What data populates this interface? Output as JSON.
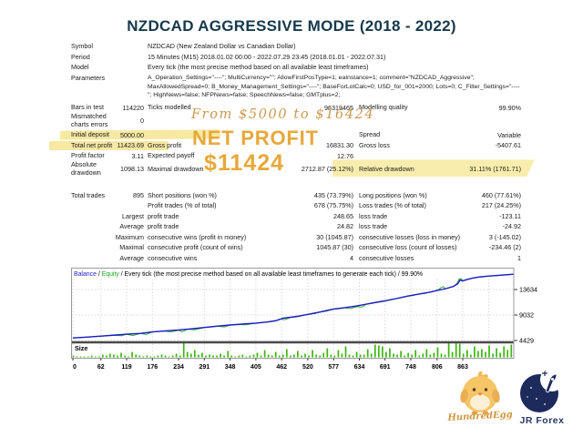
{
  "title": "NZDCAD AGGRESSIVE MODE (2018 - 2022)",
  "overlay": {
    "range_text": "From $5000 to $16424",
    "net_profit_label": "NET PROFIT",
    "net_profit_value": "$11424"
  },
  "info_rows": [
    {
      "label": "Symbol",
      "value": "NZDCAD (New Zealand Dollar vs Canadian Dollar)"
    },
    {
      "label": "Period",
      "value": "15 Minutes (M15) 2018.01.02 00:00 - 2022.07.29 23:45 (2018.01.01 - 2022.07.31)"
    },
    {
      "label": "Model",
      "value": "Every tick (the most precise method based on all available least timeframes)"
    },
    {
      "label": "Parameters",
      "value": "A_Operation_Settings=\"----\"; MultiCurrency=\"\"; AllowFirstPosType=1; eaInstance=1; comment=\"NZDCAD_Aggressive\"; MaxAllowedSpread=0; B_Money_Management_Settings=\"----\"; BaseForLotCalc=0; USD_for_001=2000; Lots=0; C_Filter_Settings=\"----\"; HighNews=false; NFPNews=false; SpeechNews=false; GMTplus=2;"
    }
  ],
  "stat_rows": [
    {
      "l1": "Bars in test",
      "v1": "114220",
      "l2": "Ticks modelled",
      "v2": "96319465",
      "l3": "Modelling quality",
      "v3": "99.90%"
    },
    {
      "l1": "Mismatched charts errors",
      "v1": "0"
    },
    {
      "l1": "Initial deposit",
      "v1": "5000.00",
      "l3": "Spread",
      "v3": "Variable",
      "gap": "sm",
      "cls": "hl-init"
    },
    {
      "l1": "Total net profit",
      "v1": "11423.69",
      "l2": "Gross profit",
      "v2": "16831.30",
      "l3": "Gross loss",
      "v3": "-5407.61",
      "cls": "hl-net"
    },
    {
      "l1": "Profit factor",
      "v1": "3.11",
      "l2": "Expected payoff",
      "v2": "12.76"
    },
    {
      "l1": "Absolute drawdown",
      "v1": "1098.13",
      "l2": "Maximal drawdown",
      "v2": "2712.87 (25.12%)",
      "l3": "Relative drawdown",
      "v3": "31.11% (1761.71)",
      "cls": "hl-rel"
    },
    {
      "l1": "Total trades",
      "v1": "895",
      "l2": "Short positions (won %)",
      "v2": "435 (73.79%)",
      "l3": "Long positions (won %)",
      "v3": "460 (77.61%)",
      "gap": "lg"
    },
    {
      "l2": "Profit trades (% of total)",
      "v2": "678 (75.75%)",
      "l3": "Loss trades (% of total)",
      "v3": "217 (24.25%)"
    },
    {
      "v1": "Largest",
      "l2": "profit trade",
      "v2": "248.65",
      "l3": "loss trade",
      "v3": "-123.11"
    },
    {
      "v1": "Average",
      "l2": "profit trade",
      "v2": "24.82",
      "l3": "loss trade",
      "v3": "-24.92"
    },
    {
      "v1": "Maximum",
      "l2": "consecutive wins (profit in money)",
      "v2": "30 (1045.87)",
      "l3": "consecutive losses (loss in money)",
      "v3": "3 (-145.02)"
    },
    {
      "v1": "Maximal",
      "l2": "consecutive profit (count of wins)",
      "v2": "1045.87 (30)",
      "l3": "consecutive loss (count of losses)",
      "v3": "-234.46 (2)"
    },
    {
      "v1": "Average",
      "l2": "consecutive wins",
      "v2": "4",
      "l3": "consecutive losses",
      "v3": "1"
    }
  ],
  "chart_data": {
    "type": "line",
    "title_parts": [
      {
        "text": "Balance",
        "color": "#2121C8"
      },
      {
        "text": " / ",
        "color": "#000000"
      },
      {
        "text": "Equity",
        "color": "#1FA51F"
      },
      {
        "text": " / Every tick (the most precise method based on all available least timeframes to generate each tick) / 99.90%",
        "color": "#000000"
      }
    ],
    "x_ticks": [
      "0",
      "62",
      "119",
      "176",
      "234",
      "291",
      "348",
      "405",
      "462",
      "520",
      "577",
      "634",
      "691",
      "748",
      "806",
      "863"
    ],
    "x_tick_values": [
      0,
      62,
      119,
      176,
      234,
      291,
      348,
      405,
      462,
      520,
      577,
      634,
      691,
      748,
      806,
      863
    ],
    "y_ticks": [
      13634,
      9032,
      4429
    ],
    "x_max": 976,
    "y_start": 5000,
    "y_end": 16424,
    "series": [
      {
        "name": "Balance",
        "color": "#1B1BC8",
        "width": 1.4,
        "points": [
          [
            0,
            4890
          ],
          [
            30,
            5040
          ],
          [
            62,
            5220
          ],
          [
            95,
            5410
          ],
          [
            119,
            5570
          ],
          [
            150,
            5710
          ],
          [
            176,
            5980
          ],
          [
            205,
            6170
          ],
          [
            234,
            6330
          ],
          [
            262,
            6540
          ],
          [
            291,
            6780
          ],
          [
            320,
            7030
          ],
          [
            348,
            7230
          ],
          [
            378,
            7420
          ],
          [
            405,
            7570
          ],
          [
            432,
            7790
          ],
          [
            452,
            8070
          ],
          [
            464,
            8440
          ],
          [
            482,
            8620
          ],
          [
            500,
            8830
          ],
          [
            520,
            9140
          ],
          [
            546,
            9560
          ],
          [
            577,
            10110
          ],
          [
            602,
            10360
          ],
          [
            628,
            10660
          ],
          [
            650,
            11000
          ],
          [
            672,
            11330
          ],
          [
            691,
            11590
          ],
          [
            715,
            11990
          ],
          [
            740,
            12430
          ],
          [
            762,
            12760
          ],
          [
            784,
            13060
          ],
          [
            806,
            13450
          ],
          [
            826,
            13800
          ],
          [
            843,
            14230
          ],
          [
            852,
            14700
          ],
          [
            857,
            15360
          ],
          [
            862,
            15180
          ],
          [
            872,
            15430
          ],
          [
            885,
            15710
          ],
          [
            900,
            15900
          ],
          [
            918,
            16050
          ],
          [
            945,
            16220
          ],
          [
            976,
            16400
          ]
        ]
      },
      {
        "name": "Equity",
        "color": "#2FAE2F",
        "width": 1,
        "points": [
          [
            0,
            4890
          ],
          [
            30,
            5020
          ],
          [
            62,
            5200
          ],
          [
            90,
            5370
          ],
          [
            108,
            5290
          ],
          [
            119,
            5550
          ],
          [
            133,
            5330
          ],
          [
            150,
            5690
          ],
          [
            162,
            5520
          ],
          [
            176,
            5950
          ],
          [
            200,
            6140
          ],
          [
            217,
            5990
          ],
          [
            234,
            6290
          ],
          [
            242,
            6010
          ],
          [
            254,
            6460
          ],
          [
            269,
            6350
          ],
          [
            291,
            6750
          ],
          [
            310,
            6900
          ],
          [
            322,
            6990
          ],
          [
            335,
            6880
          ],
          [
            348,
            7210
          ],
          [
            368,
            7300
          ],
          [
            383,
            7260
          ],
          [
            405,
            7550
          ],
          [
            430,
            7770
          ],
          [
            447,
            7910
          ],
          [
            457,
            8300
          ],
          [
            469,
            8190
          ],
          [
            482,
            8600
          ],
          [
            496,
            8710
          ],
          [
            510,
            8960
          ],
          [
            520,
            9110
          ],
          [
            537,
            9330
          ],
          [
            546,
            9540
          ],
          [
            560,
            9710
          ],
          [
            577,
            10090
          ],
          [
            591,
            10190
          ],
          [
            602,
            10340
          ],
          [
            614,
            10180
          ],
          [
            628,
            10530
          ],
          [
            639,
            10470
          ],
          [
            650,
            10980
          ],
          [
            661,
            11110
          ],
          [
            672,
            11310
          ],
          [
            684,
            11430
          ],
          [
            691,
            11570
          ],
          [
            704,
            11760
          ],
          [
            715,
            11970
          ],
          [
            727,
            12160
          ],
          [
            740,
            12410
          ],
          [
            751,
            12540
          ],
          [
            762,
            12740
          ],
          [
            774,
            12910
          ],
          [
            784,
            13040
          ],
          [
            795,
            13210
          ],
          [
            806,
            13430
          ],
          [
            814,
            13910
          ],
          [
            819,
            14160
          ],
          [
            825,
            13780
          ],
          [
            835,
            14010
          ],
          [
            843,
            14210
          ],
          [
            849,
            14610
          ],
          [
            855,
            15520
          ],
          [
            859,
            15620
          ],
          [
            863,
            15170
          ],
          [
            872,
            15410
          ],
          [
            880,
            15570
          ],
          [
            885,
            15690
          ],
          [
            895,
            15800
          ],
          [
            905,
            15900
          ],
          [
            920,
            16050
          ],
          [
            940,
            16150
          ],
          [
            960,
            16280
          ],
          [
            976,
            16380
          ]
        ]
      }
    ],
    "size_panel": {
      "label": "Size",
      "bars": [
        2,
        1,
        1,
        1,
        1,
        2,
        1,
        1,
        3,
        2,
        4,
        3,
        2,
        5,
        2,
        1,
        6,
        3,
        2,
        1,
        2,
        1,
        1,
        2,
        3,
        2,
        1,
        2,
        4,
        2,
        17,
        6,
        4,
        8,
        3,
        5,
        2,
        3,
        2,
        2,
        4,
        2,
        7,
        2,
        1,
        2,
        3,
        1,
        2,
        3,
        5,
        2,
        8,
        3,
        2,
        6,
        2,
        3,
        9,
        2,
        3,
        7,
        2,
        4,
        2,
        8,
        3,
        2,
        5,
        10,
        3,
        2,
        8,
        4,
        12,
        3,
        2,
        6,
        3,
        3,
        9,
        4,
        14,
        13,
        12,
        6,
        10,
        4,
        3,
        7,
        2,
        5,
        3,
        8,
        2,
        4,
        9,
        3,
        5,
        11,
        4,
        3,
        16,
        6,
        17,
        15,
        4,
        8,
        3,
        12,
        7,
        9,
        6,
        13,
        4,
        10,
        5,
        12,
        8,
        14
      ]
    }
  },
  "footer": {
    "brand1": "HundredEgg",
    "brand2": "JR Forex"
  }
}
